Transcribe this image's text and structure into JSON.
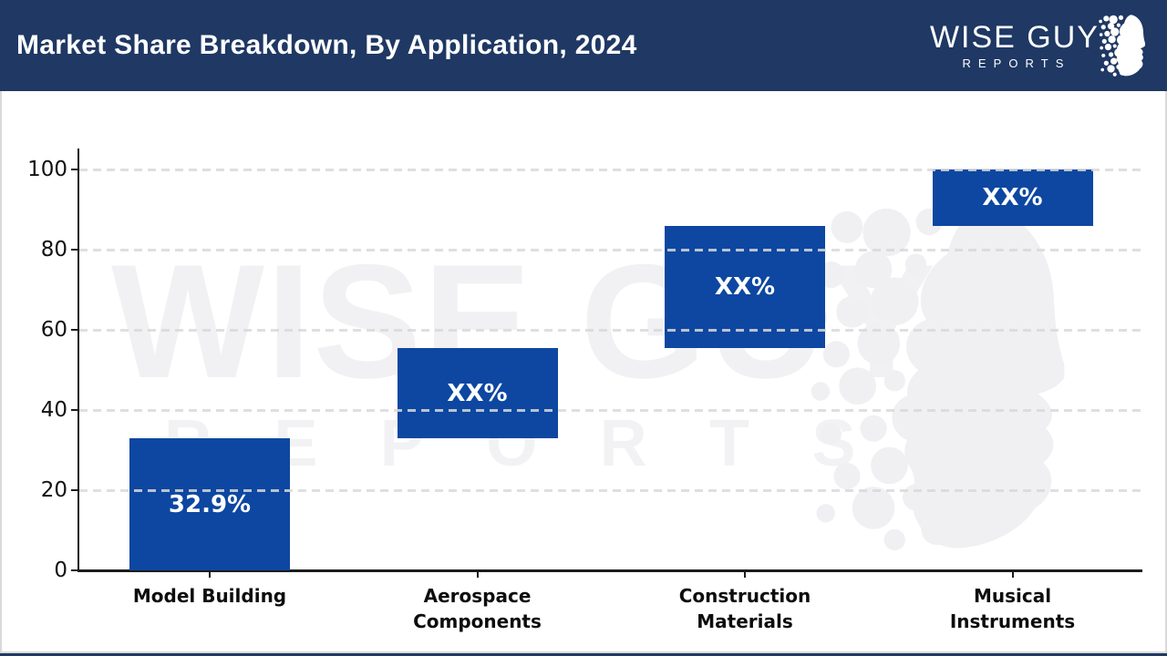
{
  "header": {
    "title": "Market Share Breakdown, By Application, 2024",
    "logo": {
      "brand_top": "WISE GUY",
      "brand_bottom": "REPORTS"
    }
  },
  "watermark": {
    "brand_top": "WISE GUY",
    "brand_bottom": "REPORTS"
  },
  "chart_data": {
    "type": "bar",
    "subtype": "waterfall",
    "title": "Market Share Breakdown, By Application, 2024",
    "categories": [
      "Model Building",
      "Aerospace Components",
      "Construction Materials",
      "Musical Instruments"
    ],
    "display_categories": [
      "Model Building",
      "Aerospace\nComponents",
      "Construction\nMaterials",
      "Musical\nInstruments"
    ],
    "series": [
      {
        "name": "Market share (%)",
        "segments": [
          {
            "category": "Model Building",
            "start": 0,
            "end": 32.9,
            "value": 32.9,
            "label": "32.9%"
          },
          {
            "category": "Aerospace Components",
            "start": 32.9,
            "end": 55.5,
            "value": 22.6,
            "label": "XX%"
          },
          {
            "category": "Construction Materials",
            "start": 55.5,
            "end": 86.0,
            "value": 30.5,
            "label": "XX%"
          },
          {
            "category": "Musical Instruments",
            "start": 86.0,
            "end": 100.0,
            "value": 14.0,
            "label": "XX%"
          }
        ]
      }
    ],
    "yticks": [
      0,
      20,
      40,
      60,
      80,
      100
    ],
    "ylim": [
      0,
      104.8
    ],
    "xlabel": "",
    "ylabel": "",
    "grid": {
      "axis": "y",
      "style": "dashed",
      "color": "#d9d9d9"
    },
    "legend": null,
    "bar_color": "#0d47a1",
    "bar_label_color": "#ffffff"
  },
  "colors": {
    "header_bg": "#1f3864",
    "bottom_strip": "#1f3864",
    "bar_blue": "#0d47a1",
    "axis": "#1c1c1c",
    "grid": "#d9d9d9",
    "text": "#111111",
    "watermark": "#f1f1f3"
  }
}
